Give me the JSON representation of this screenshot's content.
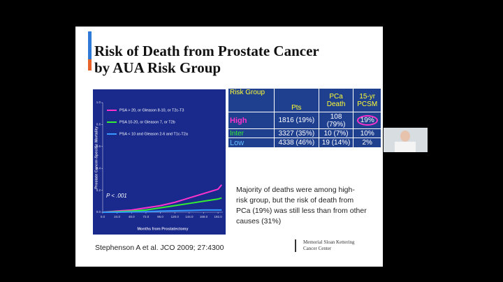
{
  "title": [
    "Risk of Death from Prostate Cancer",
    "by AUA Risk Group"
  ],
  "chart_data": {
    "type": "line",
    "y_label": "Prostate Cancer-Specific Mortality",
    "x_label": "Months from Prostatectomy",
    "annotation": "P < .001",
    "x": [
      0,
      24,
      48,
      72,
      96,
      120,
      144,
      168,
      192,
      198
    ],
    "series": [
      {
        "name": "PSA > 20, or Gleason 8-10, or T2c-T3",
        "color": "#ff33cc",
        "values": [
          0,
          0.01,
          0.02,
          0.04,
          0.06,
          0.09,
          0.13,
          0.17,
          0.21,
          0.25
        ]
      },
      {
        "name": "PSA 10-20, or Gleason 7, or T2b",
        "color": "#33ee33",
        "values": [
          0,
          0.005,
          0.01,
          0.02,
          0.04,
          0.06,
          0.08,
          0.1,
          0.12,
          0.13
        ]
      },
      {
        "name": "PSA < 10 and  Gleason 2-6 and T1c-T2a",
        "color": "#3399ff",
        "values": [
          0,
          0,
          0.002,
          0.005,
          0.01,
          0.013,
          0.016,
          0.02,
          0.02,
          0.02
        ]
      }
    ],
    "xlim": [
      0,
      200
    ],
    "ylim": [
      0,
      1
    ],
    "xticks": [
      {
        "value": 0,
        "label": "0.0"
      },
      {
        "value": 24,
        "label": "24.0"
      },
      {
        "value": 48,
        "label": "48.0"
      },
      {
        "value": 72,
        "label": "72.0"
      },
      {
        "value": 96,
        "label": "96.0"
      },
      {
        "value": 120,
        "label": "120.0"
      },
      {
        "value": 144,
        "label": "144.0"
      },
      {
        "value": 168,
        "label": "168.0"
      },
      {
        "value": 192,
        "label": "192.0"
      }
    ],
    "yticks": [
      {
        "value": 0,
        "label": "0.0"
      },
      0.2,
      0.4,
      0.6,
      0.8,
      {
        "value": 1,
        "label": "1.0"
      }
    ]
  },
  "table": {
    "header": [
      "Risk Group",
      "Pts",
      "PCa Death",
      "15-yr PCSM"
    ],
    "rows": [
      [
        "High",
        "1816 (19%)",
        "108 (79%)",
        "19%"
      ],
      [
        "Inter",
        "3327 (35%)",
        "10 (7%)",
        "10%"
      ],
      [
        "Low",
        "4338 (46%)",
        "19 (14%)",
        "2%"
      ]
    ]
  },
  "note": [
    "Majority of deaths were among high-",
    "risk group, but the risk of death from",
    "PCa (19%) was still less than from other",
    "causes (31%)"
  ],
  "citation": "Stephenson A et al.  JCO 2009; 27:4300",
  "logo": [
    "Memorial Sloan Kettering",
    "Cancer Center"
  ]
}
